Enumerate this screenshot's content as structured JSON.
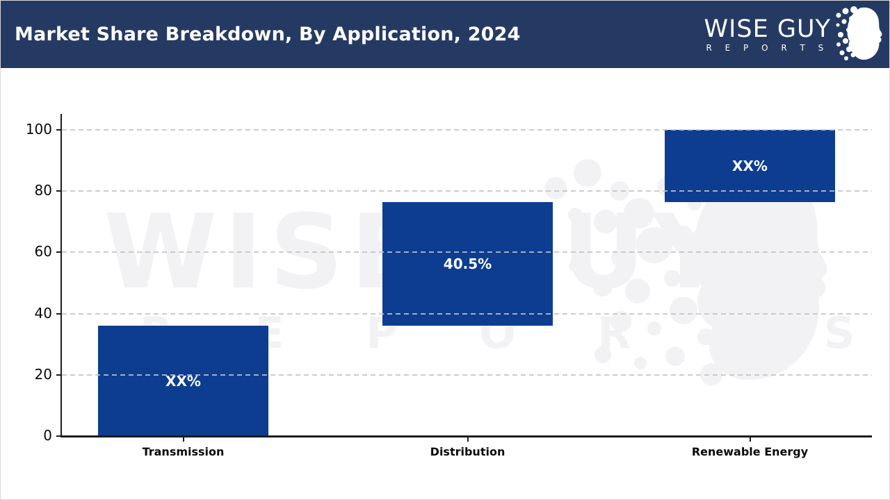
{
  "header": {
    "title": "Market Share Breakdown, By Application, 2024",
    "logo": {
      "line1": "WISE GUY",
      "line2": "R E P O R T S"
    }
  },
  "watermark": {
    "line1": "WISE GUY",
    "line2": "R E P O R T S"
  },
  "colors": {
    "header_bg": "#253a63",
    "bar": "#0c3d90",
    "grid": "#c9c9cc",
    "axis": "#1c1c1c",
    "bar_label": "#ffffff",
    "watermark": "#f2f2f4",
    "page_border": "#d9d9d9"
  },
  "chart_data": {
    "type": "bar",
    "variant": "stacked-progression",
    "title": "Market Share Breakdown, By Application, 2024",
    "categories": [
      "Transmission",
      "Distribution",
      "Renewable Energy"
    ],
    "segments": [
      {
        "category": "Transmission",
        "start": 0,
        "end": 36,
        "label": "XX%"
      },
      {
        "category": "Distribution",
        "start": 36,
        "end": 76.5,
        "label": "40.5%"
      },
      {
        "category": "Renewable Energy",
        "start": 76.5,
        "end": 100,
        "label": "XX%"
      }
    ],
    "yticks": [
      0,
      20,
      40,
      60,
      80,
      100
    ],
    "ylim": [
      0,
      105
    ],
    "xlabel": "",
    "ylabel": "",
    "grid": {
      "axis": "y",
      "style": "dashed"
    },
    "legend": false
  }
}
